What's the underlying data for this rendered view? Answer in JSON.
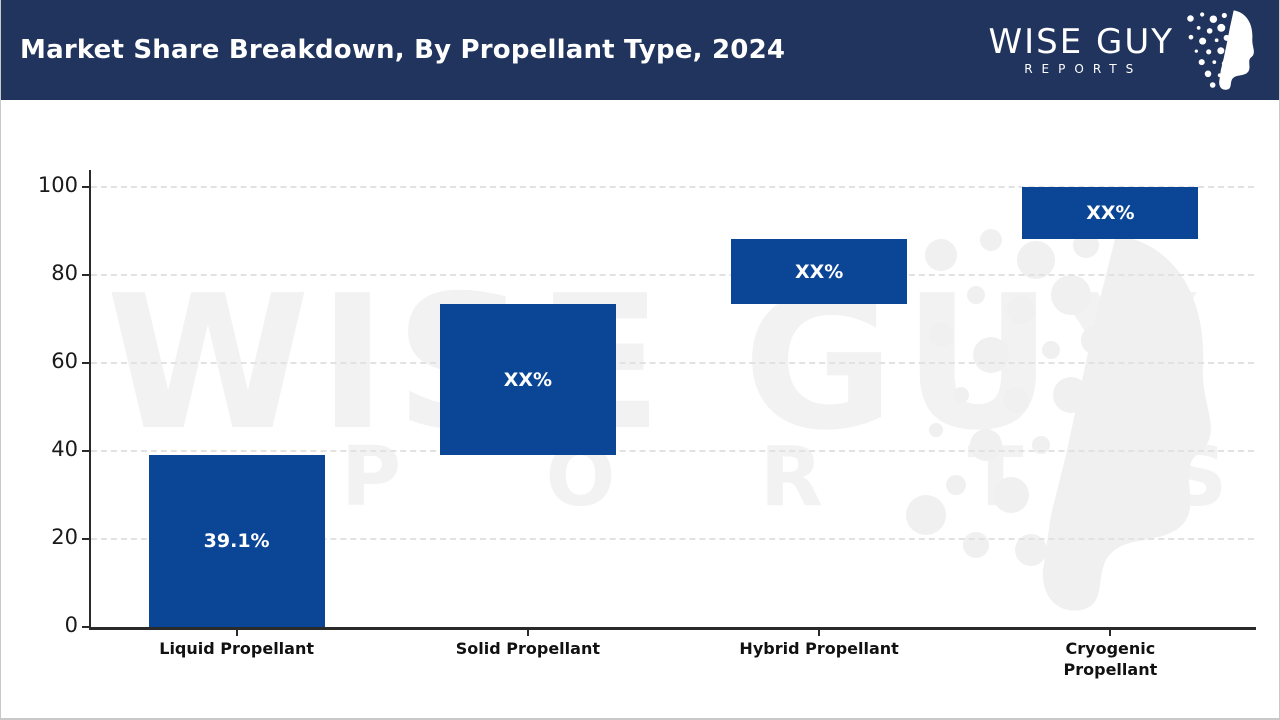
{
  "header": {
    "title": "Market Share Breakdown, By Propellant Type, 2024",
    "background_color": "#21345e",
    "logo": {
      "line1": "WISE GUY",
      "line2": "REPORTS"
    }
  },
  "watermark": {
    "line1": "WISE GUY",
    "line2": "REPORTS"
  },
  "chart_data": {
    "type": "bar",
    "subtype": "waterfall-stacked-segments",
    "title": "Market Share Breakdown, By Propellant Type, 2024",
    "categories": [
      "Liquid Propellant",
      "Solid Propellant",
      "Hybrid Propellant",
      "Cryogenic\nPropellant"
    ],
    "series": [
      {
        "name": "Market Share %",
        "starts": [
          0,
          39.1,
          73.4,
          88.2
        ],
        "ends": [
          39.1,
          73.4,
          88.2,
          100
        ]
      }
    ],
    "bar_labels": [
      "39.1%",
      "XX%",
      "XX%",
      "XX%"
    ],
    "yticks": [
      0,
      20,
      40,
      60,
      80,
      100
    ],
    "ylim": [
      0,
      103.9
    ],
    "xlabel": "",
    "ylabel": "",
    "grid": "horizontal-dashed",
    "legend": "none",
    "bar_color": "#0b4596",
    "bar_label_color": "#ffffff",
    "axis_color": "#2a2a2a",
    "grid_color": "#e2e2e2"
  }
}
